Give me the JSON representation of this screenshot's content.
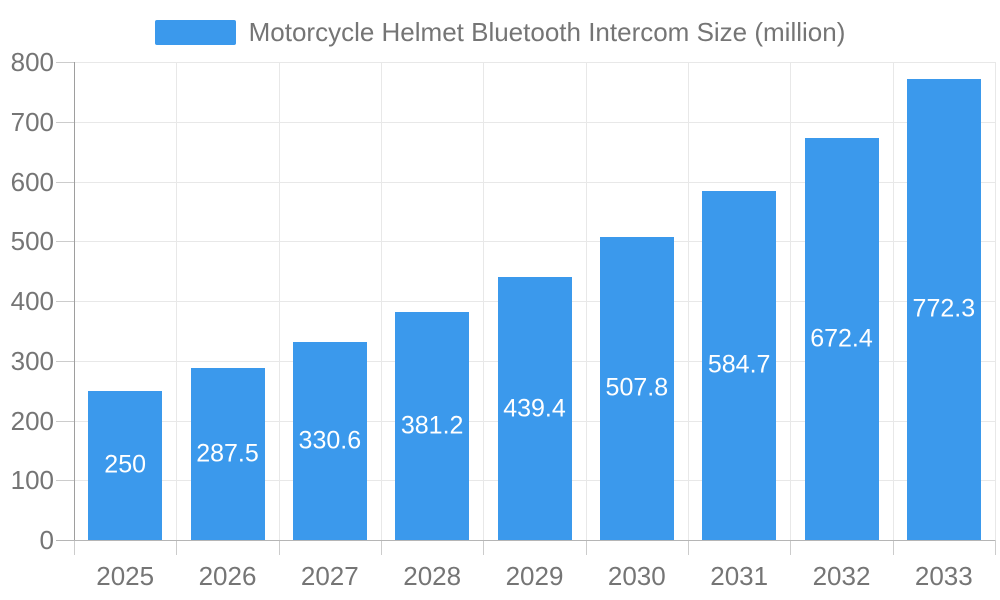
{
  "chart_data": {
    "type": "bar",
    "title": "Motorcycle Helmet Bluetooth Intercom Size (million)",
    "categories": [
      "2025",
      "2026",
      "2027",
      "2028",
      "2029",
      "2030",
      "2031",
      "2032",
      "2033"
    ],
    "values": [
      250,
      287.5,
      330.6,
      381.2,
      439.4,
      507.8,
      584.7,
      672.4,
      772.3
    ],
    "value_labels": [
      "250",
      "287.5",
      "330.6",
      "381.2",
      "439.4",
      "507.8",
      "584.7",
      "672.4",
      "772.3"
    ],
    "xlabel": "",
    "ylabel": "",
    "ylim": [
      0,
      800
    ],
    "ytick_step": 100,
    "ytick_labels": [
      "0",
      "100",
      "200",
      "300",
      "400",
      "500",
      "600",
      "700",
      "800"
    ],
    "legend_position": "top",
    "grid": true,
    "colors": {
      "bar": "#3b99ec",
      "axis_text": "#757575",
      "grid_line": "#e8e8e8",
      "axis_line": "#9e9e9e",
      "baseline": "#b5b5b5",
      "tick": "#cccccc",
      "value_label": "#ffffff",
      "background": "#ffffff"
    }
  }
}
